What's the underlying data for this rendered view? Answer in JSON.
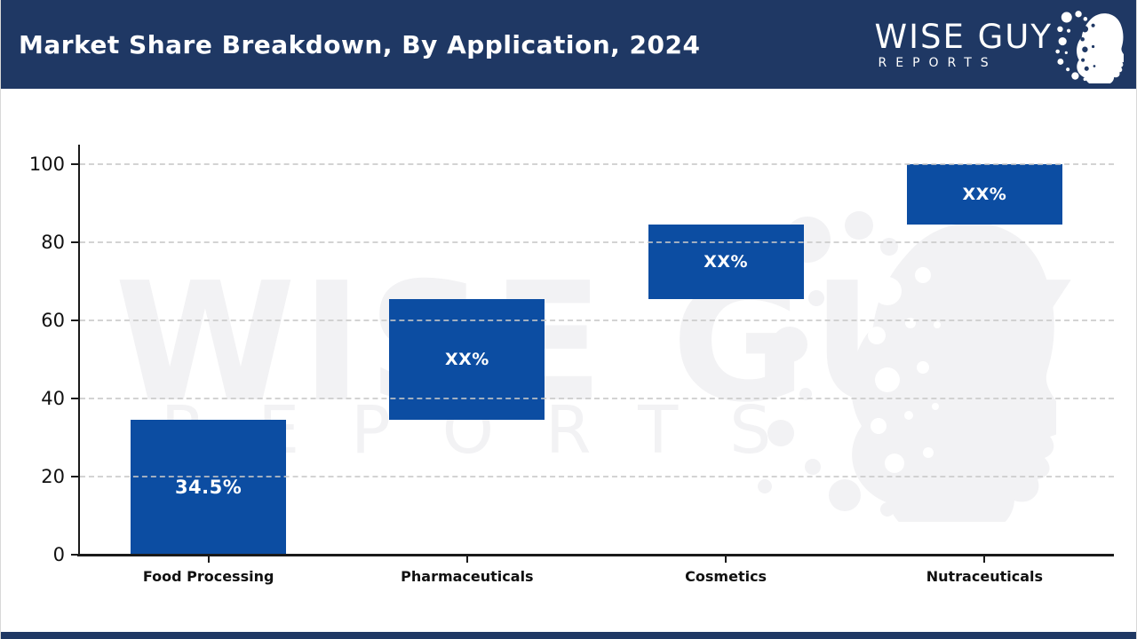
{
  "theme": {
    "navy": "#1f3864",
    "bar_blue": "#0c4da2",
    "axis_color": "#1a1a1a",
    "grid_color": "#d9d9d9",
    "watermark_color": "#f2f2f4"
  },
  "header": {
    "title": "Market Share Breakdown, By Application, 2024",
    "logo": {
      "line1": "WISE GUY",
      "line2": "REPORTS"
    }
  },
  "watermark": {
    "line1": "WISE GUY",
    "line2": "REPORTS"
  },
  "chart_data": {
    "type": "bar",
    "subtype": "waterfall",
    "title": "Market Share Breakdown, By Application, 2024",
    "xlabel": "",
    "ylabel": "",
    "categories": [
      "Food Processing",
      "Pharmaceuticals",
      "Cosmetics",
      "Nutraceuticals"
    ],
    "segments": [
      {
        "category": "Food Processing",
        "start": 0,
        "end": 34.5,
        "label": "34.5%"
      },
      {
        "category": "Pharmaceuticals",
        "start": 34.5,
        "end": 65.5,
        "label": "XX%"
      },
      {
        "category": "Cosmetics",
        "start": 65.5,
        "end": 84.5,
        "label": "XX%"
      },
      {
        "category": "Nutraceuticals",
        "start": 84.5,
        "end": 100,
        "label": "XX%"
      }
    ],
    "yticks": [
      0,
      20,
      40,
      60,
      80,
      100
    ],
    "ylim": [
      0,
      105
    ],
    "grid": "horizontal-dashed",
    "legend": "none",
    "bar_color": "#0c4da2",
    "bar_label_color": "#ffffff"
  }
}
